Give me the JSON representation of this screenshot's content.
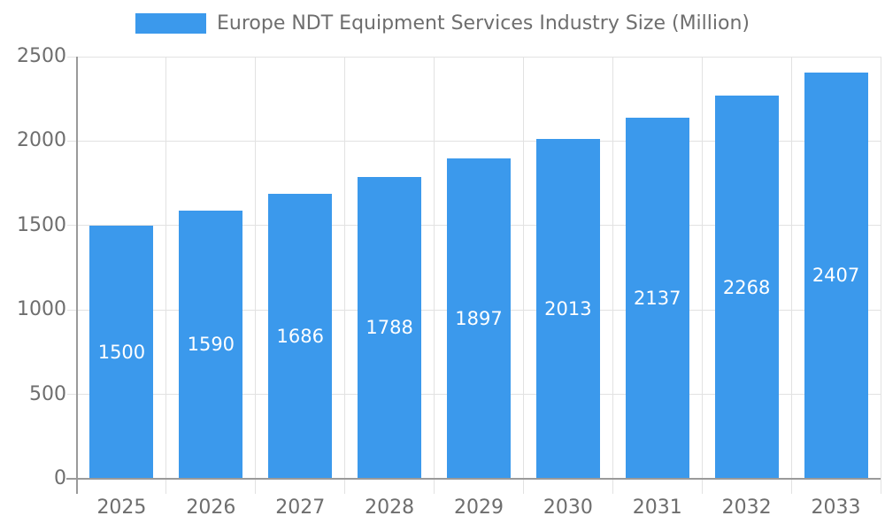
{
  "legend": {
    "label": "Europe NDT Equipment Services Industry Size (Million)",
    "swatch_color": "#3b99ec"
  },
  "chart_data": {
    "type": "bar",
    "title": "Europe NDT Equipment Services Industry Size (Million)",
    "categories": [
      "2025",
      "2026",
      "2027",
      "2028",
      "2029",
      "2030",
      "2031",
      "2032",
      "2033"
    ],
    "values": [
      1500,
      1590,
      1686,
      1788,
      1897,
      2013,
      2137,
      2268,
      2407
    ],
    "value_labels": [
      "1500",
      "1590",
      "1686",
      "1788",
      "1897",
      "2013",
      "2137",
      "2268",
      "2407"
    ],
    "xlabel": "",
    "ylabel": "",
    "ylim": [
      0,
      2500
    ],
    "yticks": [
      0,
      500,
      1000,
      1500,
      2000,
      2500
    ],
    "grid": true,
    "legend_position": "top",
    "bar_color": "#3b99ec",
    "value_label_color": "#ffffff"
  },
  "colors": {
    "bar": "#3b99ec",
    "axis": "#9a9a9a",
    "grid": "#e2e2e2",
    "tick_text": "#6e6e6e",
    "background": "#ffffff"
  }
}
